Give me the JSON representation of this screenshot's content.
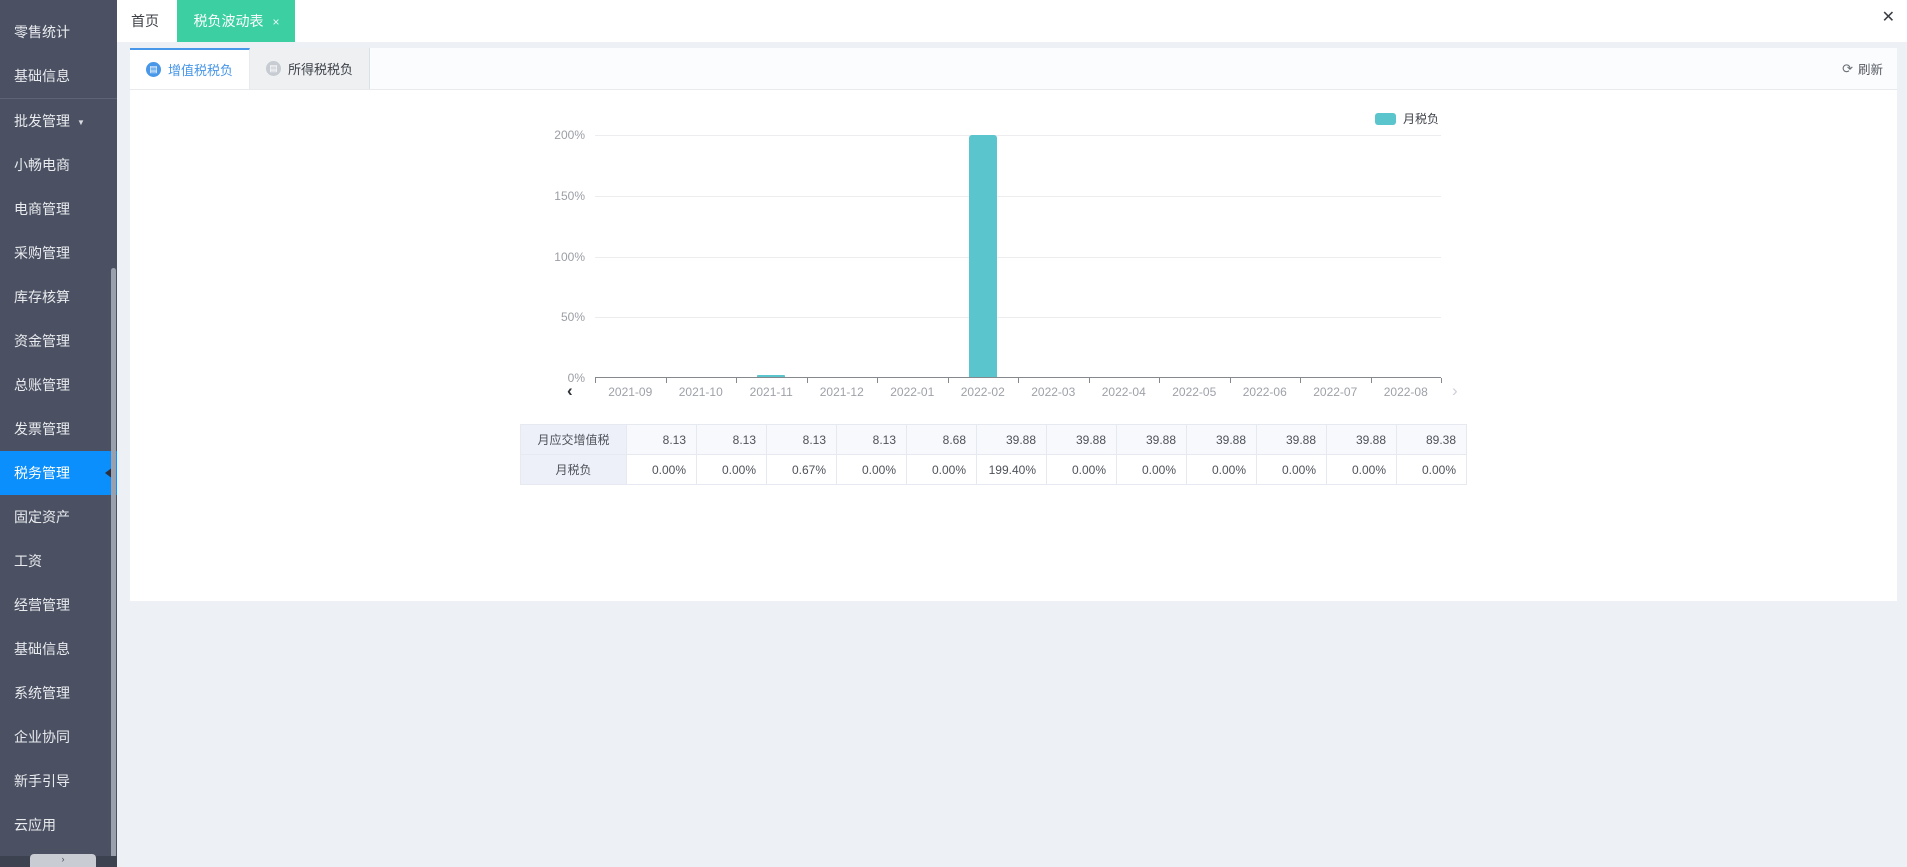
{
  "window": {
    "close_icon": "✕"
  },
  "colors": {
    "sidebar_bg": "#4b5162",
    "sidebar_active": "#0a8ffc",
    "top_tab_active_bg": "#3ccfa2",
    "accent_blue": "#4897e8",
    "bar_teal": "#5bc5ce",
    "page_bg": "#edf0f5"
  },
  "top_tab_bar": {
    "tabs": [
      {
        "label": "首页",
        "active": false
      },
      {
        "label": "税负波动表",
        "active": true,
        "closable": true
      }
    ],
    "close_glyph": "×"
  },
  "sidebar": {
    "dropdown_glyph": "▼",
    "collapse_glyph": "›",
    "items": [
      {
        "label": "零售统计"
      },
      {
        "label": "基础信息",
        "divider_after": true
      },
      {
        "label": "批发管理",
        "has_dropdown": true
      },
      {
        "label": "小畅电商"
      },
      {
        "label": "电商管理"
      },
      {
        "label": "采购管理"
      },
      {
        "label": "库存核算"
      },
      {
        "label": "资金管理"
      },
      {
        "label": "总账管理"
      },
      {
        "label": "发票管理"
      },
      {
        "label": "税务管理",
        "active": true
      },
      {
        "label": "固定资产"
      },
      {
        "label": "工资"
      },
      {
        "label": "经营管理"
      },
      {
        "label": "基础信息"
      },
      {
        "label": "系统管理"
      },
      {
        "label": "企业协同"
      },
      {
        "label": "新手引导"
      },
      {
        "label": "云应用"
      }
    ]
  },
  "content_tabs": {
    "tabs": [
      {
        "label": "增值税税负",
        "icon": "vat-report-icon",
        "icon_glyph": "▤",
        "active": true
      },
      {
        "label": "所得税税负",
        "icon": "income-tax-report-icon",
        "icon_glyph": "▤",
        "active": false
      }
    ],
    "refresh_label": "刷新",
    "refresh_glyph": "⟳"
  },
  "chart_data": {
    "type": "bar",
    "title": "",
    "categories": [
      "2021-09",
      "2021-10",
      "2021-11",
      "2021-12",
      "2022-01",
      "2022-02",
      "2022-03",
      "2022-04",
      "2022-05",
      "2022-06",
      "2022-07",
      "2022-08"
    ],
    "series": [
      {
        "name": "月税负",
        "color": "#5bc5ce",
        "values": [
          0,
          0,
          0.67,
          0,
          0,
          199.4,
          0,
          0,
          0,
          0,
          0,
          0
        ]
      }
    ],
    "ylim": [
      0,
      200
    ],
    "yticks": [
      "0%",
      "50%",
      "100%",
      "150%",
      "200%"
    ],
    "legend_position": "top-right",
    "grid": true,
    "pagination": {
      "prev": "‹",
      "next": "›"
    }
  },
  "table": {
    "rows": [
      {
        "header": "月应交增值税",
        "values": [
          "8.13",
          "8.13",
          "8.13",
          "8.13",
          "8.68",
          "39.88",
          "39.88",
          "39.88",
          "39.88",
          "39.88",
          "39.88",
          "89.38"
        ]
      },
      {
        "header": "月税负",
        "values": [
          "0.00%",
          "0.00%",
          "0.67%",
          "0.00%",
          "0.00%",
          "199.40%",
          "0.00%",
          "0.00%",
          "0.00%",
          "0.00%",
          "0.00%",
          "0.00%"
        ]
      }
    ]
  }
}
